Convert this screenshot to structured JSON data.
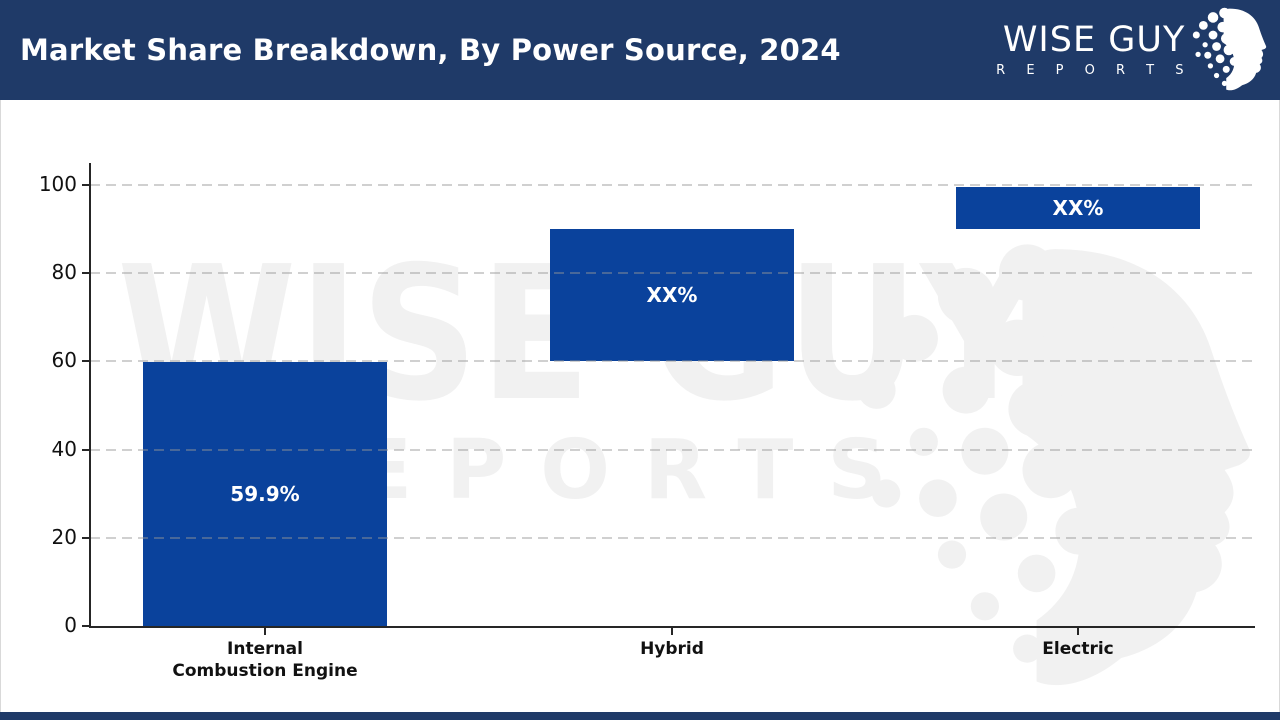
{
  "header": {
    "title": "Market Share Breakdown, By Power Source, 2024",
    "logo": {
      "wordmark": "WISE GUY",
      "subtext": "R E P O R T S"
    }
  },
  "watermark": {
    "wordmark": "WISE GUY",
    "subtext": "REPORTS"
  },
  "chart_data": {
    "type": "bar",
    "subtype": "floating-segment-waterfall",
    "title": "Market Share Breakdown, By Power Source, 2024",
    "categories": [
      "Internal\nCombustion Engine",
      "Hybrid",
      "Electric"
    ],
    "bars": [
      {
        "category": "Internal Combustion Engine",
        "start": 0,
        "end": 59.9,
        "label": "59.9%"
      },
      {
        "category": "Hybrid",
        "start": 60,
        "end": 90,
        "label": "XX%"
      },
      {
        "category": "Electric",
        "start": 90,
        "end": 99.5,
        "label": "XX%"
      }
    ],
    "xlabel": "",
    "ylabel": "",
    "yticks": [
      0,
      20,
      40,
      60,
      80,
      100
    ],
    "ylim": [
      0,
      105
    ],
    "grid": {
      "axis": "y",
      "style": "dashed",
      "drawn_above_bars": true
    },
    "legend": null,
    "colors": {
      "bar": "#0a429c",
      "grid_dash": "#c8c8c8",
      "axis": "#262626",
      "header_bg": "#1f3a68",
      "bar_label_text": "#ffffff",
      "watermark": "#f1f1f1"
    }
  }
}
